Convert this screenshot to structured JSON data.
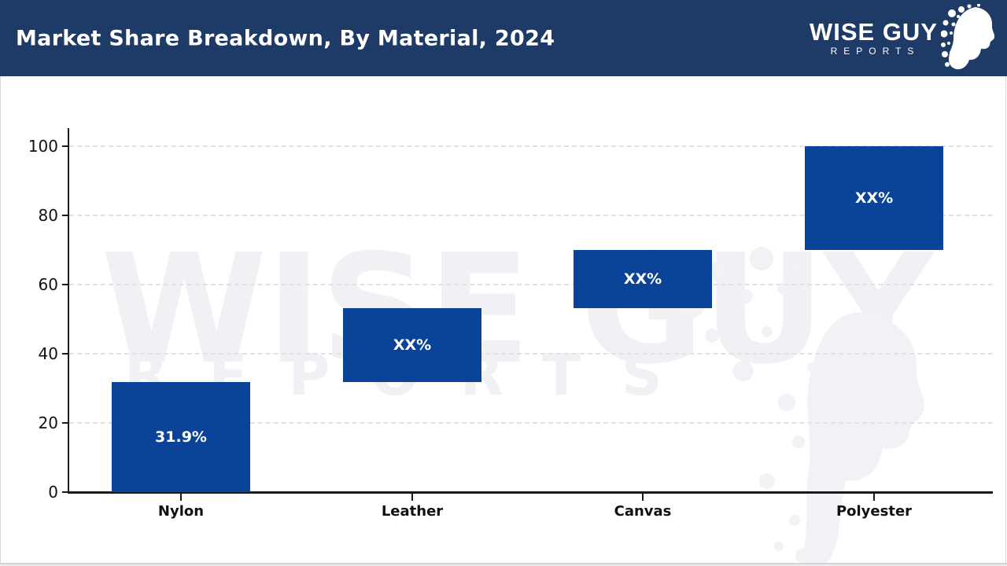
{
  "header": {
    "title": "Market Share Breakdown, By Material, 2024",
    "logo": {
      "line1": "WISE GUY",
      "line2": "REPORTS"
    }
  },
  "watermark": {
    "line1": "WISE GUY",
    "line2": "REPORTS"
  },
  "colors": {
    "header_bg": "#1e3a66",
    "bar": "#0a4397",
    "axis": "#1a1a1a",
    "gridline": "#e2e2e2",
    "bar_label_text": "#ffffff",
    "watermark": "#f0f1f4"
  },
  "icons": {
    "logo_face": "dotted-face-profile-icon"
  },
  "chart_data": {
    "type": "bar",
    "subtype": "waterfall",
    "title": "Market Share Breakdown, By Material, 2024",
    "categories": [
      "Nylon",
      "Leather",
      "Canvas",
      "Polyester"
    ],
    "segments": [
      {
        "category": "Nylon",
        "start": 0,
        "end": 31.9,
        "label": "31.9%"
      },
      {
        "category": "Leather",
        "start": 31.9,
        "end": 53.2,
        "label": "XX%"
      },
      {
        "category": "Canvas",
        "start": 53.2,
        "end": 70.0,
        "label": "XX%"
      },
      {
        "category": "Polyester",
        "start": 70.0,
        "end": 100.0,
        "label": "XX%"
      }
    ],
    "xlabel": "",
    "ylabel": "",
    "yticks": [
      0,
      20,
      40,
      60,
      80,
      100
    ],
    "ylim": [
      0,
      105
    ],
    "grid": "horizontal-dashed",
    "legend": "none"
  }
}
